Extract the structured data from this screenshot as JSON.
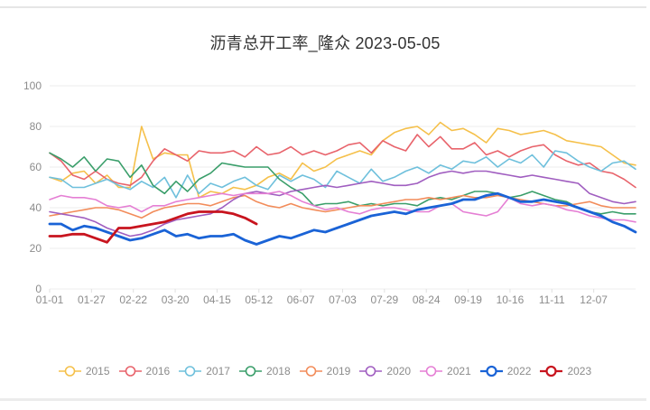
{
  "title": "沥青总开工率_隆众 2023-05-05",
  "chart_data": {
    "type": "line",
    "title": "沥青总开工率_隆众 2023-05-05",
    "xlabel": "",
    "ylabel": "",
    "ylim": [
      0,
      100
    ],
    "yticks": [
      "0",
      "20",
      "40",
      "60",
      "80",
      "100"
    ],
    "xticks": [
      "01-01",
      "01-27",
      "02-22",
      "03-20",
      "04-15",
      "05-12",
      "06-07",
      "07-03",
      "07-29",
      "08-24",
      "09-19",
      "10-16",
      "11-11",
      "12-07"
    ],
    "grid": true,
    "legend_position": "bottom",
    "series": [
      {
        "name": "2015",
        "color": "#f5c04a",
        "width": 1.6,
        "values": [
          55,
          53,
          57,
          58,
          52,
          56,
          50,
          50,
          80,
          64,
          67,
          66,
          66,
          45,
          48,
          47,
          50,
          49,
          51,
          55,
          57,
          54,
          62,
          58,
          60,
          64,
          66,
          68,
          66,
          73,
          77,
          79,
          80,
          76,
          82,
          78,
          79,
          76,
          72,
          79,
          78,
          76,
          77,
          78,
          76,
          73,
          72,
          71,
          70,
          66,
          62,
          61
        ]
      },
      {
        "name": "2016",
        "color": "#e8636b",
        "width": 1.6,
        "values": [
          67,
          63,
          56,
          54,
          58,
          54,
          52,
          51,
          55,
          63,
          69,
          66,
          63,
          68,
          67,
          67,
          68,
          65,
          70,
          66,
          67,
          70,
          66,
          68,
          66,
          68,
          71,
          72,
          67,
          73,
          70,
          68,
          76,
          70,
          75,
          69,
          69,
          72,
          66,
          68,
          65,
          68,
          70,
          71,
          66,
          63,
          61,
          62,
          58,
          57,
          54,
          50
        ]
      },
      {
        "name": "2017",
        "color": "#6fc0dc",
        "width": 1.6,
        "values": [
          55,
          54,
          50,
          50,
          52,
          54,
          51,
          49,
          53,
          50,
          55,
          45,
          56,
          47,
          52,
          50,
          53,
          55,
          51,
          49,
          56,
          53,
          56,
          54,
          50,
          58,
          55,
          52,
          59,
          53,
          55,
          58,
          60,
          57,
          61,
          59,
          63,
          62,
          65,
          60,
          64,
          62,
          66,
          60,
          68,
          67,
          63,
          60,
          58,
          62,
          63,
          59
        ]
      },
      {
        "name": "2018",
        "color": "#3a9e6a",
        "width": 1.6,
        "values": [
          67,
          64,
          60,
          65,
          58,
          64,
          63,
          55,
          61,
          51,
          47,
          53,
          48,
          54,
          57,
          62,
          61,
          60,
          60,
          60,
          54,
          50,
          47,
          41,
          42,
          42,
          43,
          41,
          42,
          41,
          42,
          42,
          41,
          44,
          45,
          44,
          46,
          48,
          48,
          47,
          45,
          46,
          48,
          46,
          44,
          43,
          40,
          38,
          37,
          38,
          37,
          37
        ]
      },
      {
        "name": "2019",
        "color": "#f28c5a",
        "width": 1.6,
        "values": [
          36,
          37,
          38,
          39,
          40,
          40,
          39,
          37,
          35,
          38,
          40,
          41,
          42,
          42,
          41,
          43,
          45,
          46,
          43,
          41,
          40,
          42,
          40,
          39,
          38,
          39,
          40,
          41,
          41,
          42,
          43,
          44,
          44,
          45,
          44,
          45,
          46,
          45,
          45,
          46,
          45,
          44,
          43,
          42,
          41,
          41,
          42,
          43,
          41,
          40,
          40,
          40
        ]
      },
      {
        "name": "2020",
        "color": "#a05ec0",
        "width": 1.6,
        "values": [
          38,
          37,
          36,
          35,
          33,
          30,
          28,
          26,
          27,
          29,
          32,
          34,
          35,
          36,
          37,
          40,
          44,
          47,
          48,
          47,
          46,
          48,
          49,
          50,
          51,
          50,
          51,
          52,
          53,
          52,
          51,
          51,
          52,
          55,
          57,
          58,
          57,
          58,
          58,
          57,
          56,
          55,
          56,
          55,
          54,
          53,
          52,
          47,
          45,
          43,
          42,
          43
        ]
      },
      {
        "name": "2021",
        "color": "#e57fd4",
        "width": 1.6,
        "values": [
          44,
          46,
          45,
          45,
          44,
          41,
          40,
          41,
          38,
          41,
          41,
          43,
          44,
          45,
          46,
          47,
          46,
          47,
          47,
          47,
          48,
          46,
          43,
          41,
          39,
          40,
          38,
          37,
          39,
          40,
          40,
          39,
          38,
          38,
          41,
          42,
          38,
          37,
          36,
          38,
          45,
          42,
          41,
          42,
          41,
          39,
          38,
          36,
          35,
          34,
          34,
          33
        ]
      },
      {
        "name": "2022",
        "color": "#1a63d6",
        "width": 2.8,
        "values": [
          32,
          32,
          29,
          31,
          30,
          28,
          26,
          24,
          25,
          27,
          29,
          26,
          27,
          25,
          26,
          26,
          27,
          24,
          22,
          24,
          26,
          25,
          27,
          29,
          28,
          30,
          32,
          34,
          36,
          37,
          38,
          37,
          39,
          40,
          41,
          42,
          44,
          44,
          46,
          47,
          45,
          43,
          43,
          44,
          43,
          42,
          40,
          38,
          36,
          33,
          31,
          28
        ]
      },
      {
        "name": "2023",
        "color": "#c8141e",
        "width": 2.8,
        "values": [
          26,
          26,
          27,
          27,
          25,
          23,
          30,
          30,
          31,
          32,
          33,
          35,
          37,
          38,
          38,
          38,
          37,
          35,
          32
        ]
      }
    ]
  },
  "legend": {
    "items": [
      "2015",
      "2016",
      "2017",
      "2018",
      "2019",
      "2020",
      "2021",
      "2022",
      "2023"
    ]
  }
}
